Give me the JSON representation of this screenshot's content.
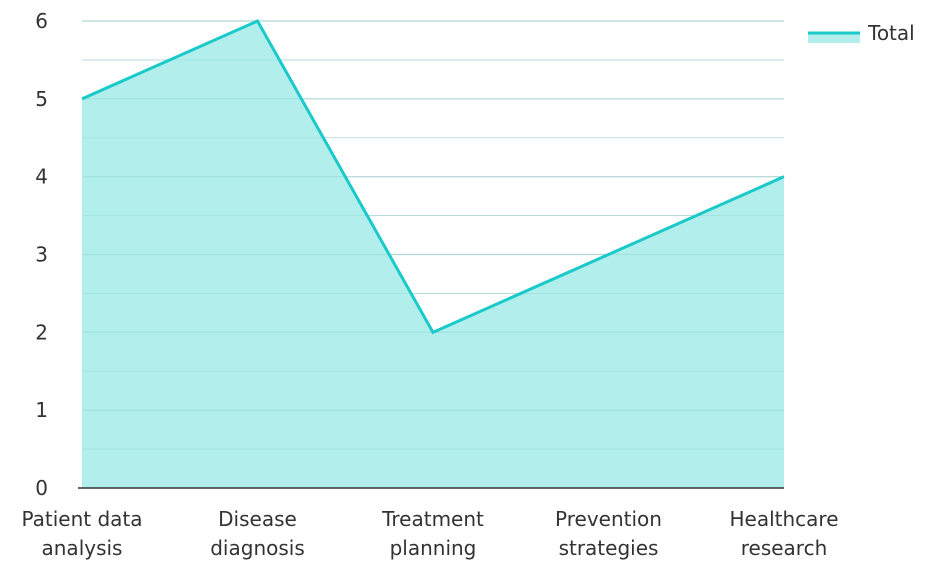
{
  "chart_data": {
    "type": "area",
    "categories": [
      [
        "Patient data",
        "analysis"
      ],
      [
        "Disease",
        "diagnosis"
      ],
      [
        "Treatment",
        "planning"
      ],
      [
        "Prevention",
        "strategies"
      ],
      [
        "Healthcare",
        "research"
      ]
    ],
    "series": [
      {
        "name": "Total",
        "values": [
          5,
          6,
          2,
          3,
          4
        ]
      }
    ],
    "ylim": [
      0,
      6
    ],
    "yticks": [
      0,
      1,
      2,
      3,
      4,
      5,
      6
    ],
    "grid": true,
    "legend": "top-right",
    "colors": {
      "line": "#1ac9c9",
      "fill": "#b2eeec",
      "grid": "#d9d9d9",
      "axis": "#333333"
    }
  }
}
